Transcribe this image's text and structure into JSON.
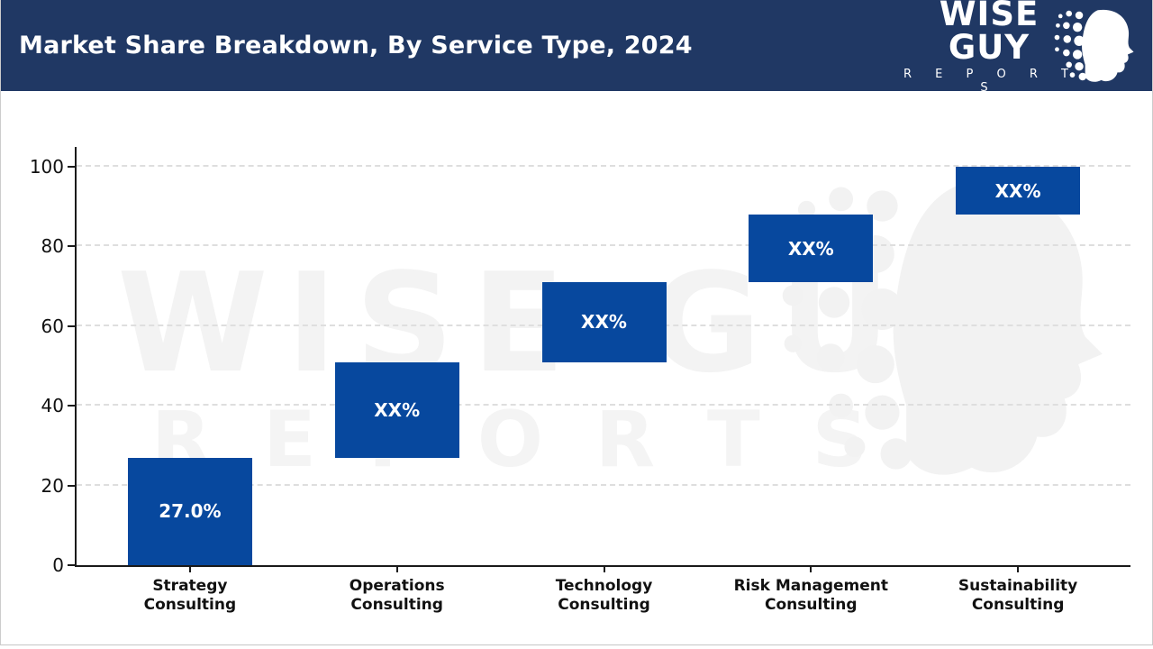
{
  "header": {
    "title": "Market Share Breakdown, By Service Type, 2024",
    "bg_color": "#203864",
    "logo": {
      "name": "WISE GUY",
      "subtitle": "R E P O R T S"
    }
  },
  "watermark": {
    "line1": "WISE GUY",
    "line2": "R E P O R T S"
  },
  "chart_data": {
    "type": "bar",
    "variant": "waterfall",
    "title": "Market Share Breakdown, By Service Type, 2024",
    "categories": [
      "Strategy Consulting",
      "Operations Consulting",
      "Technology Consulting",
      "Risk Management Consulting",
      "Sustainability Consulting"
    ],
    "categories_display": [
      "Strategy\nConsulting",
      "Operations\nConsulting",
      "Technology\nConsulting",
      "Risk Management\nConsulting",
      "Sustainability\nConsulting"
    ],
    "segments": [
      {
        "category": "Strategy Consulting",
        "start": 0,
        "end": 27,
        "label": "27.0%"
      },
      {
        "category": "Operations Consulting",
        "start": 27,
        "end": 51,
        "label": "XX%"
      },
      {
        "category": "Technology Consulting",
        "start": 51,
        "end": 71,
        "label": "XX%"
      },
      {
        "category": "Risk Management Consulting",
        "start": 71,
        "end": 88,
        "label": "XX%"
      },
      {
        "category": "Sustainability Consulting",
        "start": 88,
        "end": 100,
        "label": "XX%"
      }
    ],
    "xlabel": "",
    "ylabel": "",
    "y_ticks": [
      0,
      20,
      40,
      60,
      80,
      100
    ],
    "ylim": [
      0,
      105
    ],
    "grid": "horizontal-dashed",
    "legend": "none",
    "bar_color": "#07489e",
    "bar_label_color": "#ffffff",
    "axis_color": "#1a1a1a",
    "gridline_color": "#dedede"
  }
}
